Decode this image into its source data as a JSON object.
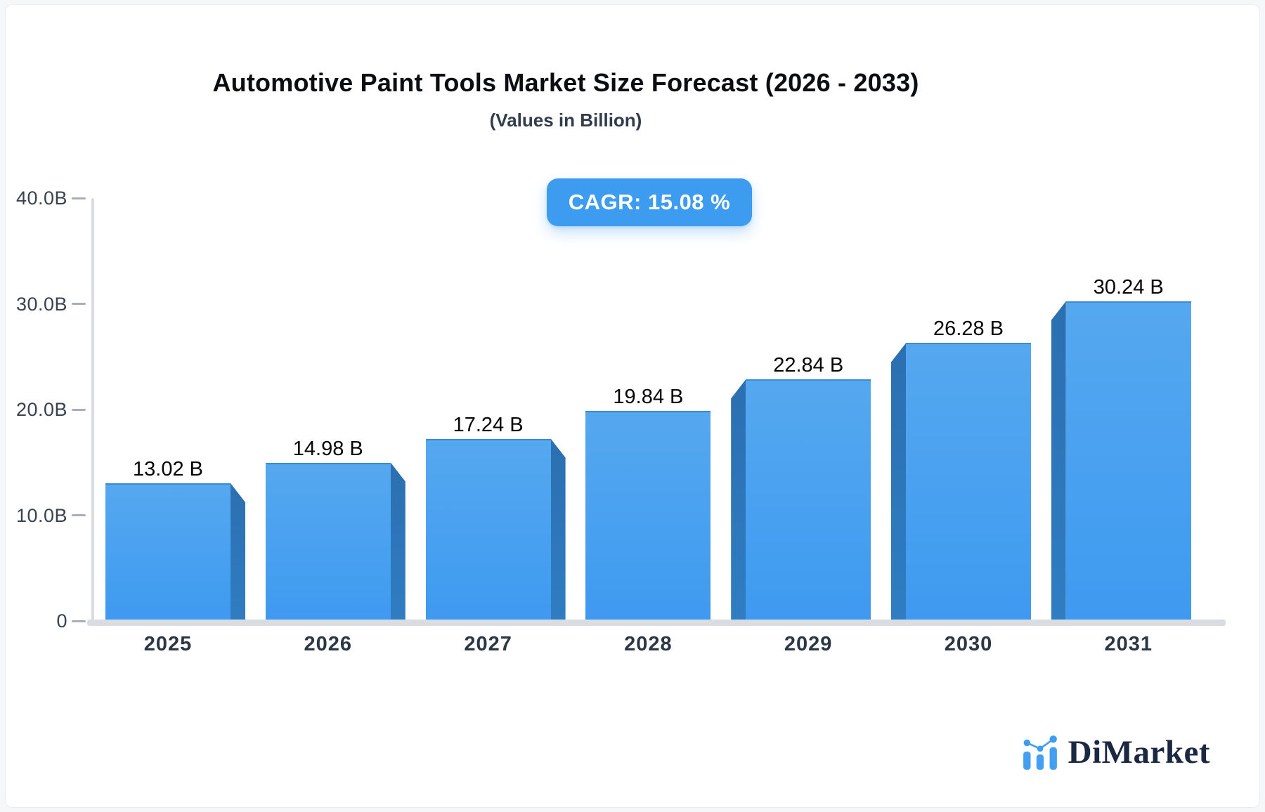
{
  "header": {
    "title": "Automotive Paint Tools Market Size Forecast (2026 - 2033)",
    "subtitle": "(Values in Billion)"
  },
  "badge": {
    "label": "CAGR: 15.08 %"
  },
  "chart_data": {
    "type": "bar",
    "title": "Automotive Paint Tools Market Size Forecast (2026 - 2033)",
    "subtitle": "(Values in Billion)",
    "categories": [
      "2025",
      "2026",
      "2027",
      "2028",
      "2029",
      "2030",
      "2031"
    ],
    "values": [
      13.02,
      14.98,
      17.24,
      19.84,
      22.84,
      26.28,
      30.24
    ],
    "bar_labels": [
      "13.02 B",
      "14.98 B",
      "17.24 B",
      "19.84 B",
      "22.84 B",
      "26.28 B",
      "30.24 B"
    ],
    "xlabel": "",
    "ylabel": "",
    "ylim": [
      0,
      40
    ],
    "yticks": [
      {
        "value": 40,
        "label": "40.0B"
      },
      {
        "value": 30,
        "label": "30.0B"
      },
      {
        "value": 20,
        "label": "20.0B"
      },
      {
        "value": 10,
        "label": "10.0B"
      },
      {
        "value": 0,
        "label": "0"
      }
    ],
    "grid": false,
    "legend": false,
    "bar_style": "3d-extruded, perspective toward center bar"
  },
  "footer": {
    "logo_text": "DiMarket",
    "logo_icon": "dimarket-bar-chart-logo-icon"
  },
  "colors": {
    "bar_face_top": "#55a8ef",
    "bar_face_bottom": "#3e9af0",
    "bar_side_top": "#2b6fb0",
    "bar_side_bottom": "#2f7dc2",
    "bar_top_edge": "#3a8bd3",
    "badge_bg": "#3d9bf0",
    "badge_text": "#ffffff",
    "axis_line": "#d9dce1",
    "tick_dash": "#a9afb8",
    "tick_text": "#39424e",
    "xlabel_text": "#2c3746",
    "value_text": "#060606",
    "title_text": "#0b0d10",
    "subtitle_text": "#323c4b",
    "logo_text": "#1b2842",
    "logo_blue": "#459ff1",
    "page_bg": "#f6f7f9",
    "card_bg": "#ffffff"
  }
}
